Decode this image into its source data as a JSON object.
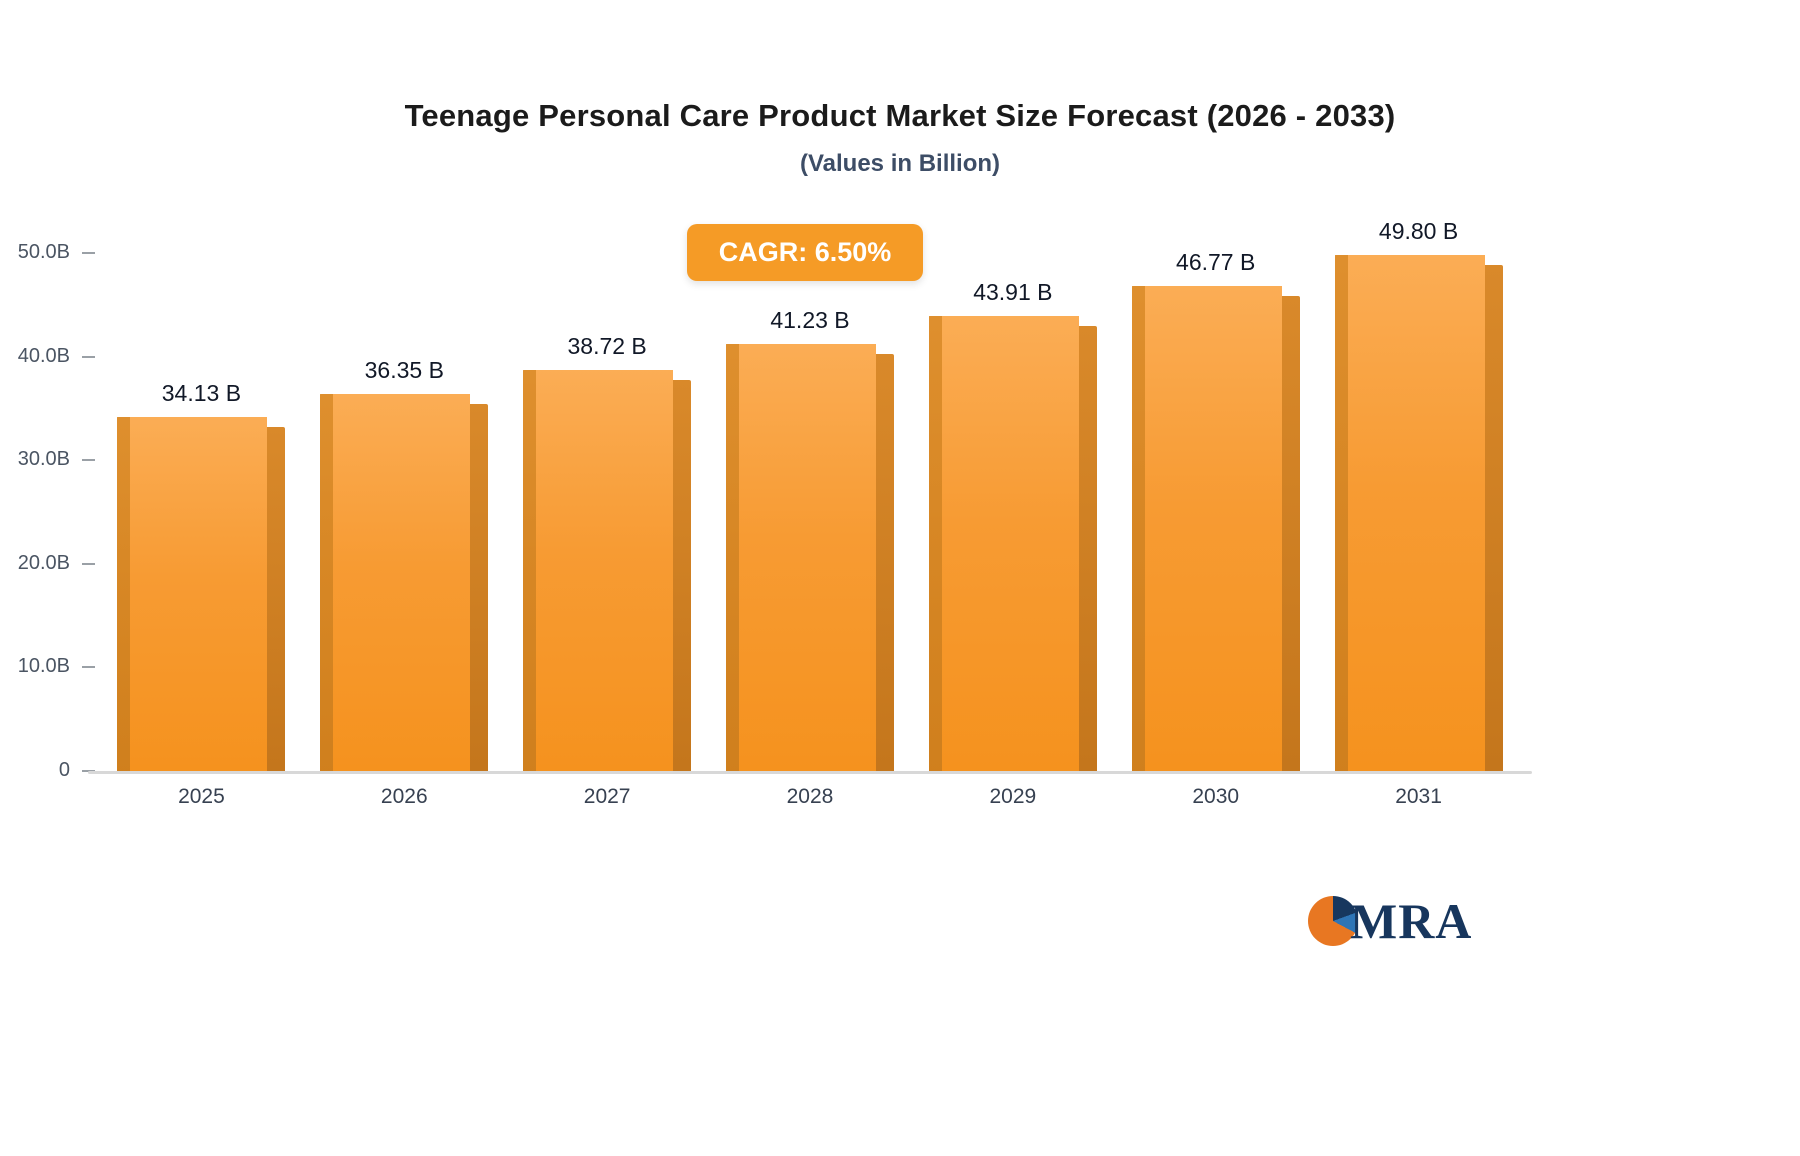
{
  "title": "Teenage Personal Care Product Market Size Forecast (2026 - 2033)",
  "subtitle": "(Values in Billion)",
  "cagr_badge": "CAGR: 6.50%",
  "logo_text": "MRA",
  "colors": {
    "bar_top": "#FBAD55",
    "bar_bottom": "#F5921E",
    "bar_side": "#C4761C",
    "badge_bg": "#F59B26",
    "subtitle_text": "#3D4D66",
    "title_text": "#1B1B1B"
  },
  "chart_data": {
    "type": "bar",
    "categories": [
      "2025",
      "2026",
      "2027",
      "2028",
      "2029",
      "2030",
      "2031"
    ],
    "values": [
      34.13,
      36.35,
      38.72,
      41.23,
      43.91,
      46.77,
      49.8
    ],
    "value_labels": [
      "34.13 B",
      "36.35 B",
      "38.72 B",
      "41.23 B",
      "43.91 B",
      "46.77 B",
      "49.80 B"
    ],
    "title": "Teenage Personal Care Product Market Size Forecast (2026 - 2033)",
    "subtitle": "(Values in Billion)",
    "xlabel": "",
    "ylabel": "",
    "ylim": [
      0,
      50
    ],
    "ytick_values": [
      0,
      10,
      20,
      30,
      40,
      50
    ],
    "ytick_labels": [
      "0",
      "10.0B",
      "20.0B",
      "30.0B",
      "40.0B",
      "50.0B"
    ],
    "annotation": "CAGR: 6.50%",
    "legend_position": "none",
    "grid": false
  }
}
